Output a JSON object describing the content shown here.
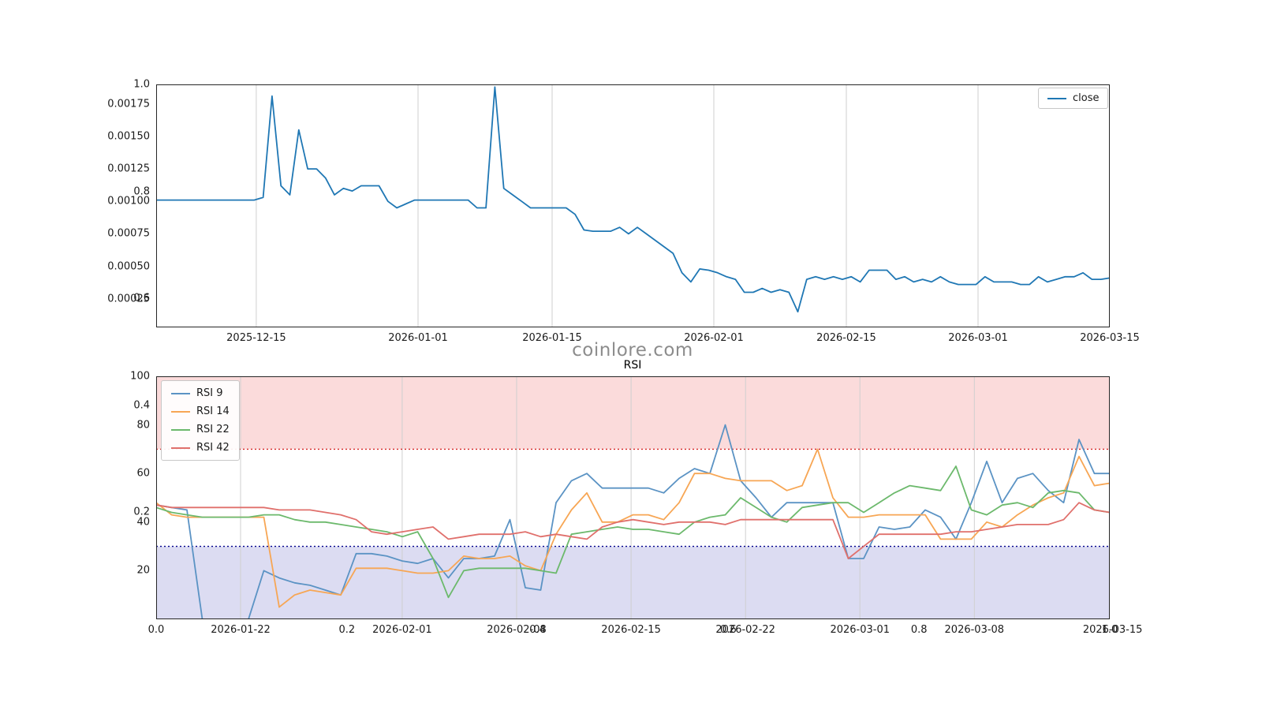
{
  "watermark": "coinlore.com",
  "chart_data": [
    {
      "type": "line",
      "title": "",
      "legend_position": "upper right",
      "grid": "vertical",
      "ylim": [
        3e-05,
        0.0019
      ],
      "yticks": [
        {
          "label": "0.00175",
          "v": 0.00175
        },
        {
          "label": "0.00150",
          "v": 0.0015
        },
        {
          "label": "0.00125",
          "v": 0.00125
        },
        {
          "label": "0.00100",
          "v": 0.001
        },
        {
          "label": "0.00075",
          "v": 0.00075
        },
        {
          "label": "0.00050",
          "v": 0.0005
        },
        {
          "label": "0.00025",
          "v": 0.00025
        }
      ],
      "xticks": [
        {
          "label": "2025-12-15",
          "pos": 0.105
        },
        {
          "label": "2026-01-01",
          "pos": 0.2746
        },
        {
          "label": "2026-01-15",
          "pos": 0.4152
        },
        {
          "label": "2026-02-01",
          "pos": 0.5848
        },
        {
          "label": "2026-02-15",
          "pos": 0.7237
        },
        {
          "label": "2026-03-01",
          "pos": 0.8619
        },
        {
          "label": "2026-03-15",
          "pos": 1.0
        }
      ],
      "series": [
        {
          "name": "close",
          "color": "#1f77b4",
          "values": [
            0.00101,
            0.00101,
            0.00101,
            0.00101,
            0.00101,
            0.00101,
            0.00101,
            0.00101,
            0.00101,
            0.00101,
            0.00101,
            0.00101,
            0.00103,
            0.00181,
            0.00112,
            0.00105,
            0.00155,
            0.00125,
            0.00125,
            0.00118,
            0.00105,
            0.0011,
            0.00108,
            0.00112,
            0.00112,
            0.00112,
            0.001,
            0.00095,
            0.00098,
            0.00101,
            0.00101,
            0.00101,
            0.00101,
            0.00101,
            0.00101,
            0.00101,
            0.00095,
            0.00095,
            0.00188,
            0.0011,
            0.00105,
            0.001,
            0.00095,
            0.00095,
            0.00095,
            0.00095,
            0.00095,
            0.0009,
            0.00078,
            0.00077,
            0.00077,
            0.00077,
            0.0008,
            0.00075,
            0.0008,
            0.00075,
            0.0007,
            0.00065,
            0.0006,
            0.00045,
            0.00038,
            0.00048,
            0.00047,
            0.00045,
            0.00042,
            0.0004,
            0.0003,
            0.0003,
            0.00033,
            0.0003,
            0.00032,
            0.0003,
            0.00015,
            0.0004,
            0.00042,
            0.0004,
            0.00042,
            0.0004,
            0.00042,
            0.00038,
            0.00047,
            0.00047,
            0.00047,
            0.0004,
            0.00042,
            0.00038,
            0.0004,
            0.00038,
            0.00042,
            0.00038,
            0.00036,
            0.00036,
            0.00036,
            0.00042,
            0.00038,
            0.00038,
            0.00038,
            0.00036,
            0.00036,
            0.00042,
            0.00038,
            0.0004,
            0.00042,
            0.00042,
            0.00045,
            0.0004,
            0.0004,
            0.00041
          ]
        }
      ]
    },
    {
      "type": "line",
      "title": "RSI",
      "legend_position": "upper left",
      "grid": "vertical",
      "ylim": [
        0,
        100
      ],
      "overbought": 70,
      "oversold": 30,
      "yticks": [
        {
          "label": "100",
          "v": 100
        },
        {
          "label": "80",
          "v": 80
        },
        {
          "label": "60",
          "v": 60
        },
        {
          "label": "40",
          "v": 40
        },
        {
          "label": "20",
          "v": 20
        }
      ],
      "xticks": [
        {
          "label": "2026-01-22",
          "pos": 0.0885
        },
        {
          "label": "2026-02-01",
          "pos": 0.258
        },
        {
          "label": "2026-02-08",
          "pos": 0.378
        },
        {
          "label": "2026-02-15",
          "pos": 0.498
        },
        {
          "label": "2026-02-22",
          "pos": 0.618
        },
        {
          "label": "2026-03-01",
          "pos": 0.738
        },
        {
          "label": "2026-03-08",
          "pos": 0.858
        },
        {
          "label": "2026-03-15",
          "pos": 1.003
        }
      ],
      "bands": [
        {
          "from": 70,
          "to": 100,
          "color": "#fbdbdb"
        },
        {
          "from": 0,
          "to": 30,
          "color": "#dcdcf2"
        }
      ],
      "hlines": [
        {
          "v": 70,
          "color": "#d62728"
        },
        {
          "v": 30,
          "color": "#00008b"
        }
      ],
      "series": [
        {
          "name": "RSI 9",
          "color": "#5b93c4",
          "values": [
            47,
            46,
            45,
            0,
            0,
            0,
            0,
            20,
            17,
            15,
            14,
            12,
            10,
            27,
            27,
            26,
            24,
            23,
            25,
            17,
            25,
            25,
            26,
            41,
            13,
            12,
            48,
            57,
            60,
            54,
            54,
            54,
            54,
            52,
            58,
            62,
            60,
            80,
            57,
            50,
            42,
            48,
            48,
            48,
            48,
            25,
            25,
            38,
            37,
            38,
            45,
            42,
            33,
            48,
            65,
            48,
            58,
            60,
            53,
            48,
            74,
            60,
            60
          ]
        },
        {
          "name": "RSI 14",
          "color": "#f7a654",
          "values": [
            48,
            43,
            42,
            42,
            42,
            42,
            42,
            42,
            5,
            10,
            12,
            11,
            10,
            21,
            21,
            21,
            20,
            19,
            19,
            20,
            26,
            25,
            25,
            26,
            22,
            20,
            35,
            45,
            52,
            40,
            40,
            43,
            43,
            41,
            48,
            60,
            60,
            58,
            57,
            57,
            57,
            53,
            55,
            70,
            50,
            42,
            42,
            43,
            43,
            43,
            43,
            33,
            33,
            33,
            40,
            38,
            43,
            47,
            50,
            52,
            67,
            55,
            56
          ]
        },
        {
          "name": "RSI 22",
          "color": "#6cb96c",
          "values": [
            46,
            44,
            43,
            42,
            42,
            42,
            42,
            43,
            43,
            41,
            40,
            40,
            39,
            38,
            37,
            36,
            34,
            36,
            25,
            9,
            20,
            21,
            21,
            21,
            21,
            20,
            19,
            35,
            36,
            37,
            38,
            37,
            37,
            36,
            35,
            40,
            42,
            43,
            50,
            46,
            42,
            40,
            46,
            47,
            48,
            48,
            44,
            48,
            52,
            55,
            54,
            53,
            63,
            45,
            43,
            47,
            48,
            46,
            52,
            53,
            52,
            45,
            44
          ]
        },
        {
          "name": "RSI 42",
          "color": "#e0706c",
          "values": [
            47,
            46,
            46,
            46,
            46,
            46,
            46,
            46,
            45,
            45,
            45,
            44,
            43,
            41,
            36,
            35,
            36,
            37,
            38,
            33,
            34,
            35,
            35,
            35,
            36,
            34,
            35,
            34,
            33,
            38,
            40,
            41,
            40,
            39,
            40,
            40,
            40,
            39,
            41,
            41,
            41,
            41,
            41,
            41,
            41,
            25,
            30,
            35,
            35,
            35,
            35,
            35,
            36,
            36,
            37,
            38,
            39,
            39,
            39,
            41,
            48,
            45,
            44
          ]
        }
      ]
    }
  ],
  "ghost_axis": {
    "yticks": [
      {
        "label": "1.0",
        "pos": 1.0
      },
      {
        "label": "0.8",
        "pos": 0.8
      },
      {
        "label": "0.6",
        "pos": 0.6
      },
      {
        "label": "0.4",
        "pos": 0.4
      },
      {
        "label": "0.2",
        "pos": 0.2
      }
    ],
    "xticks": [
      {
        "label": "0.0",
        "pos": 0.0
      },
      {
        "label": "0.2",
        "pos": 0.2
      },
      {
        "label": "0.4",
        "pos": 0.4
      },
      {
        "label": "0.6",
        "pos": 0.6
      },
      {
        "label": "0.8",
        "pos": 0.8
      },
      {
        "label": "1.0",
        "pos": 1.0
      }
    ]
  }
}
